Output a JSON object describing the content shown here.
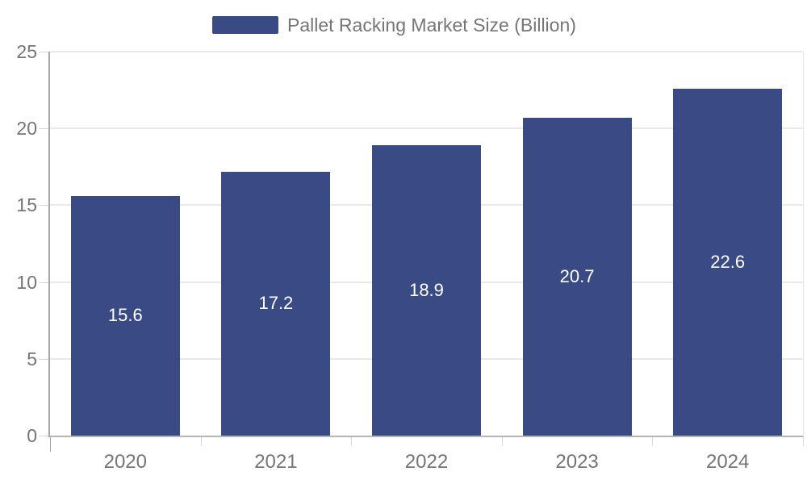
{
  "chart_data": {
    "type": "bar",
    "title": "Pallet Racking Market Size (Billion)",
    "categories": [
      "2020",
      "2021",
      "2022",
      "2023",
      "2024"
    ],
    "series": [
      {
        "name": "Pallet Racking Market Size (Billion)",
        "values": [
          15.6,
          17.2,
          18.9,
          20.7,
          22.6
        ],
        "data_labels": [
          "15.6",
          "17.2",
          "18.9",
          "20.7",
          "22.6"
        ]
      }
    ],
    "xlabel": "",
    "ylabel": "",
    "ylim": [
      0,
      25
    ],
    "yticks": [
      0,
      5,
      10,
      15,
      20,
      25
    ],
    "grid": true,
    "legend_position": "top",
    "colors": {
      "bar": "#3a4a84",
      "value_label": "#ffffff",
      "tick_label": "#757575",
      "gridline": "#e9e9e9",
      "y_axis_line": "#a6a6a6",
      "x_axis_line": "#b5b5b5"
    }
  }
}
